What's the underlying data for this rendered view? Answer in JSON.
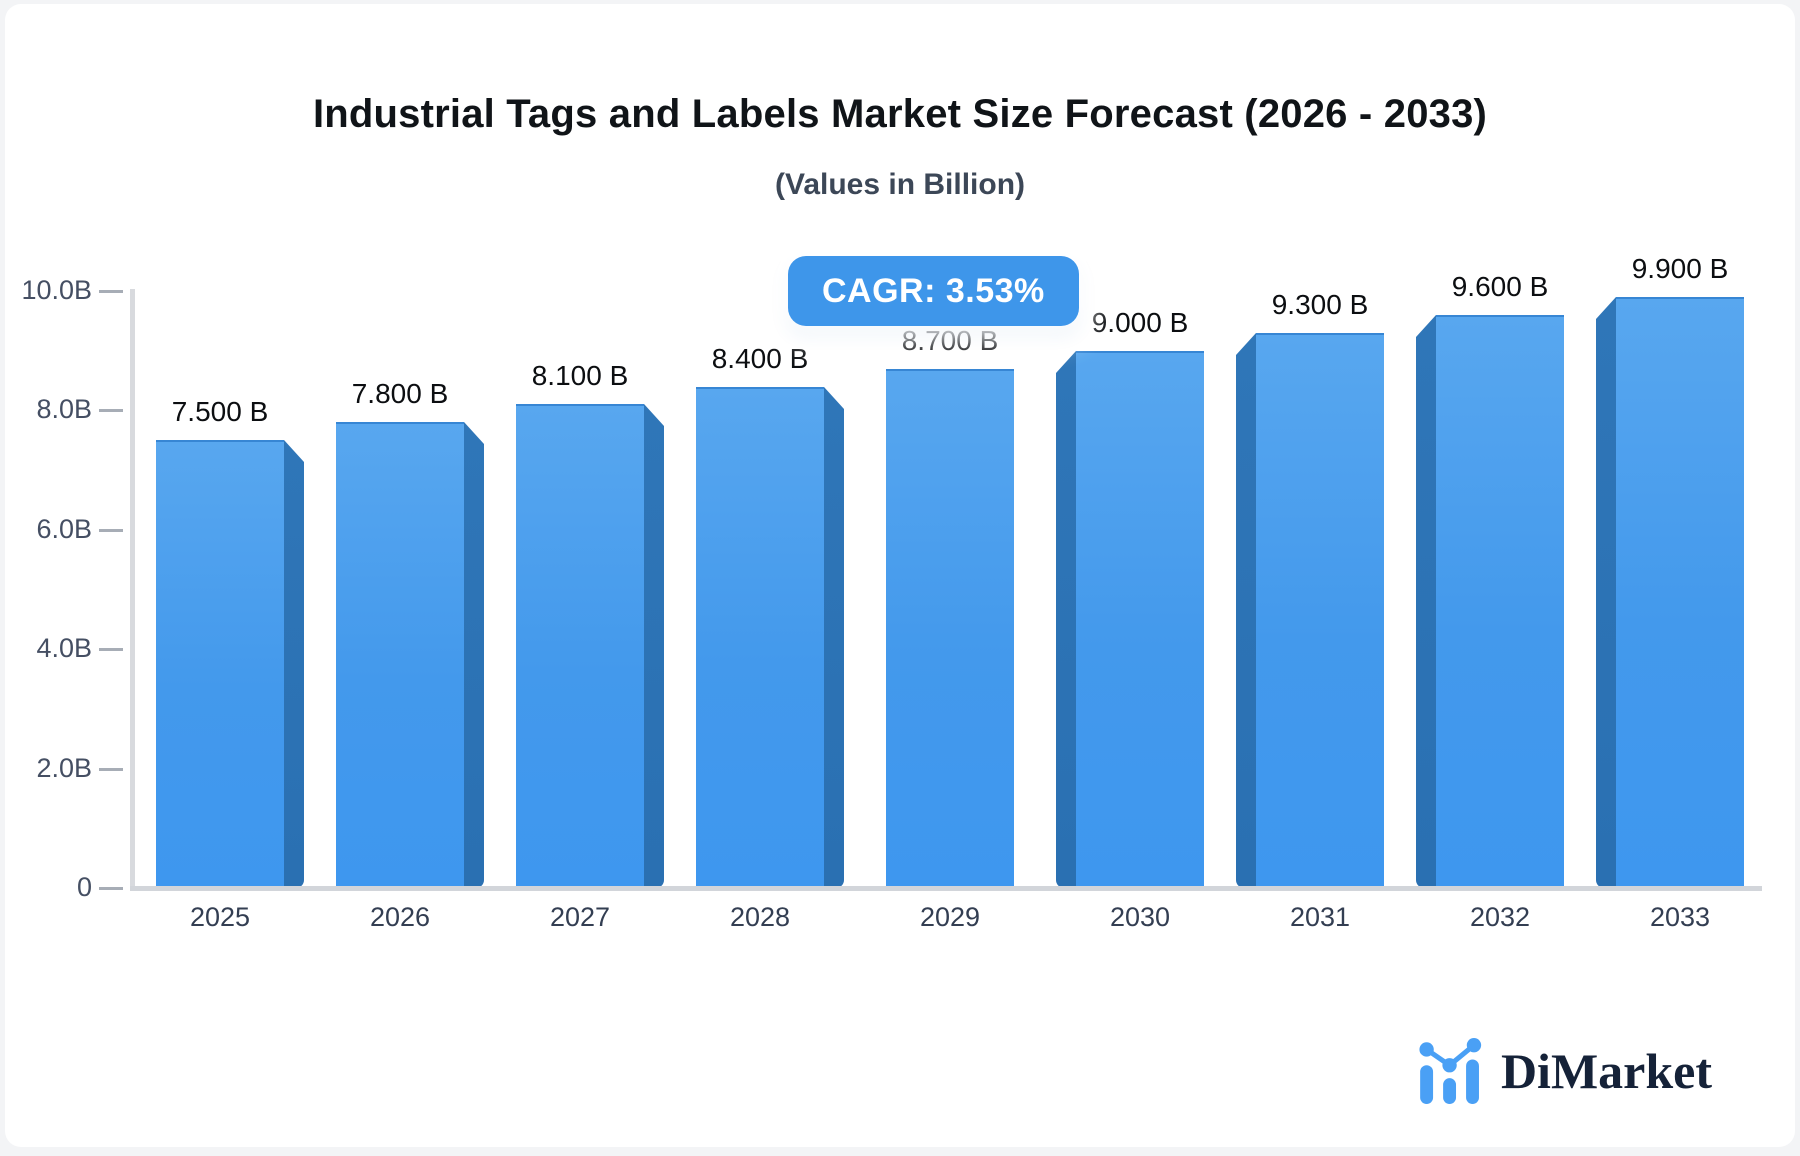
{
  "header": {
    "title": "Industrial Tags and Labels Market Size Forecast (2026 - 2033)",
    "subtitle": "(Values in Billion)"
  },
  "badge": {
    "label": "CAGR: 3.53%",
    "background": "#3e96ea",
    "text_color": "#ffffff"
  },
  "chart_data": {
    "type": "bar",
    "title": "Industrial Tags and Labels Market Size Forecast (2026 - 2033)",
    "subtitle": "(Values in Billion)",
    "categories": [
      "2025",
      "2026",
      "2027",
      "2028",
      "2029",
      "2030",
      "2031",
      "2032",
      "2033"
    ],
    "values": [
      7.5,
      7.8,
      8.1,
      8.4,
      8.7,
      9.0,
      9.3,
      9.6,
      9.9
    ],
    "value_labels": [
      "7.500 B",
      "7.800 B",
      "8.100 B",
      "8.400 B",
      "8.700 B",
      "9.000 B",
      "9.300 B",
      "9.600 B",
      "9.900 B"
    ],
    "xlabel": "",
    "ylabel": "",
    "ylim": [
      0,
      10
    ],
    "yticks": [
      0,
      2,
      4,
      6,
      8,
      10
    ],
    "ytick_labels": [
      "0",
      "2.0B",
      "4.0B",
      "6.0B",
      "8.0B",
      "10.0B"
    ],
    "grid": false,
    "legend": false,
    "annotation": "CAGR: 3.53%",
    "bar_face_color": "#4a9fee",
    "bar_side_color": "#2b72b4",
    "effect": "3d-center-perspective"
  },
  "footer": {
    "logo_text": "DiMarket",
    "logo_color": "#152238",
    "logo_icon": "mini-bar-line-chart-icon",
    "logo_icon_color": "#4aa0f5"
  }
}
